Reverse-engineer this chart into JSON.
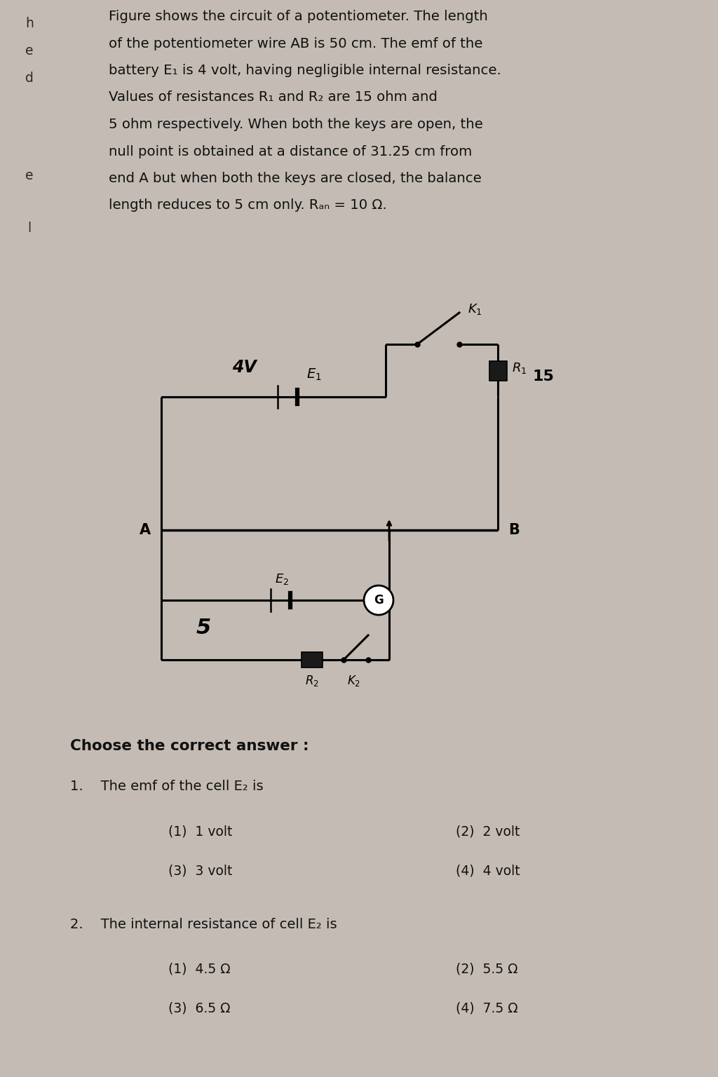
{
  "bg_color": "#c4bcb4",
  "text_color": "#111111",
  "choose_heading": "Choose the correct answer :",
  "q1": "1.    The emf of the cell E₂ is",
  "q1_opt1": "(1)  1 volt",
  "q1_opt2": "(2)  2 volt",
  "q1_opt3": "(3)  3 volt",
  "q1_opt4": "(4)  4 volt",
  "q2": "2.    The internal resistance of cell E₂ is",
  "q2_opt1": "(1)  4.5 Ω",
  "q2_opt2": "(2)  5.5 Ω",
  "q2_opt3": "(3)  6.5 Ω",
  "q2_opt4": "(4)  7.5 Ω",
  "para_lines": [
    "Figure shows the circuit of a potentiometer. The length",
    "of the potentiometer wire AB is 50 cm. The emf of the",
    "battery E₁ is 4 volt, having negligible internal resistance.",
    "Values of resistances R₁ and R₂ are 15 ohm and",
    "5 ohm respectively. When both the keys are open, the",
    "null point is obtained at a distance of 31.25 cm from",
    "end A but when both the keys are closed, the balance",
    "length reduces to 5 cm only. Rₐₙ = 10 Ω."
  ],
  "margin_chars": [
    "h",
    "e",
    "d",
    "",
    "e",
    "",
    "l"
  ],
  "margin_y": [
    15.1,
    14.72,
    14.35,
    13.98,
    12.85,
    12.5,
    12.0
  ]
}
